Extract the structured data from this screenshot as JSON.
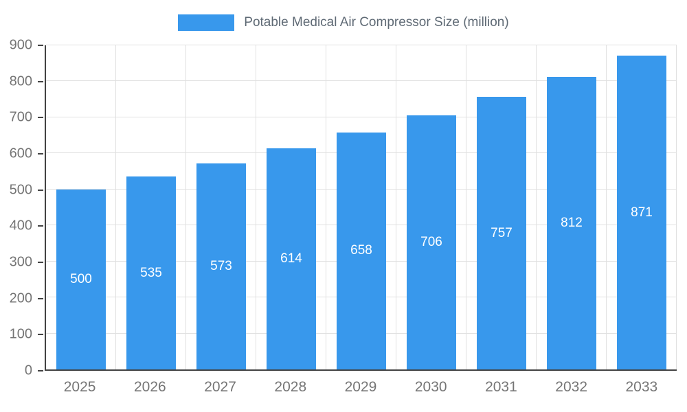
{
  "chart_data": {
    "type": "bar",
    "title": "Potable Medical Air Compressor Size (million)",
    "categories": [
      "2025",
      "2026",
      "2027",
      "2028",
      "2029",
      "2030",
      "2031",
      "2032",
      "2033"
    ],
    "values": [
      500,
      535,
      573,
      614,
      658,
      706,
      757,
      812,
      871
    ],
    "xlabel": "",
    "ylabel": "",
    "ylim": [
      0,
      900
    ],
    "ytick_step": 100,
    "grid": true,
    "legend_position": "top",
    "value_labels": "inside-center",
    "colors": {
      "bar": "#3898ec",
      "title": "#5f6a75",
      "axis_label": "#757575",
      "axis_line": "#424242",
      "grid_line": "#e0e0e0",
      "value_label": "#ffffff",
      "background": "#ffffff"
    }
  }
}
